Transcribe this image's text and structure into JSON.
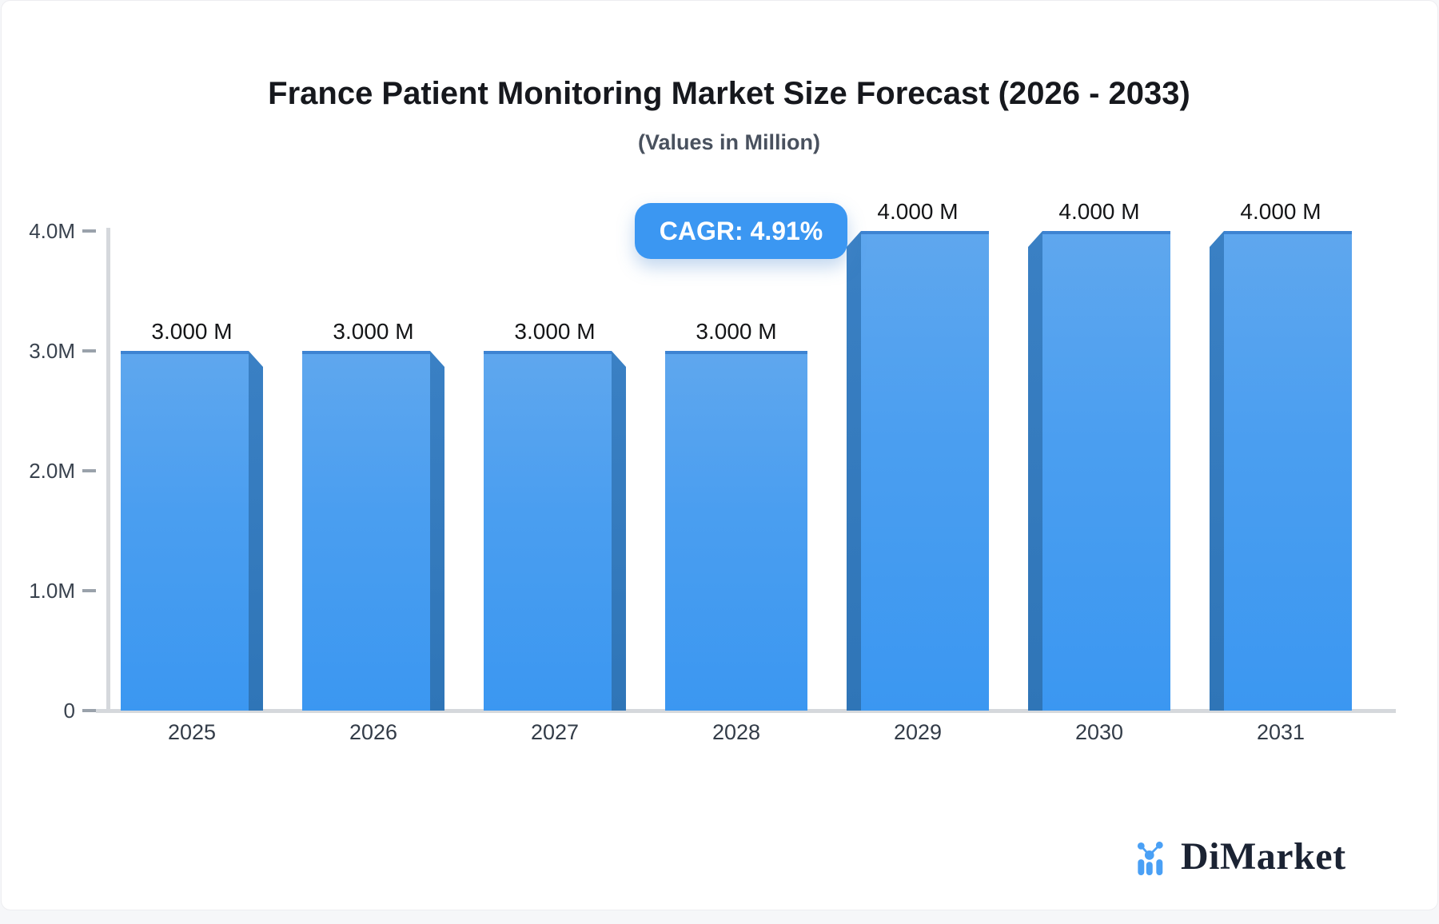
{
  "chart_data": {
    "type": "bar",
    "title": "France Patient Monitoring Market Size Forecast (2026 - 2033)",
    "subtitle": "(Values in Million)",
    "categories": [
      "2025",
      "2026",
      "2027",
      "2028",
      "2029",
      "2030",
      "2031"
    ],
    "values": [
      3.0,
      3.0,
      3.0,
      3.0,
      4.0,
      4.0,
      4.0
    ],
    "value_labels": [
      "3.000 M",
      "3.000 M",
      "3.000 M",
      "3.000 M",
      "4.000 M",
      "4.000 M",
      "4.000 M"
    ],
    "unit": "Million",
    "ylim": [
      0,
      4.0
    ],
    "y_ticks": [
      {
        "label": "4.0M",
        "value": 4.0
      },
      {
        "label": "3.0M",
        "value": 3.0
      },
      {
        "label": "2.0M",
        "value": 2.0
      },
      {
        "label": "1.0M",
        "value": 1.0
      },
      {
        "label": "0",
        "value": 0.0
      }
    ],
    "grid": false,
    "legend_position": "none",
    "badge": "CAGR: 4.91%",
    "colors": {
      "bar_top": "#5fa7ee",
      "bar_bottom": "#3b97f1",
      "bar_top_edge": "#3d83d2",
      "bar_side_face": "#2f75b7",
      "badge_bg": "#3b97f2",
      "axis_line": "#d5d8dc",
      "tick_dash": "#9aa2ab"
    }
  },
  "branding": {
    "logo_text": "DiMarket",
    "logo_icon": "bar-line-chart-icon",
    "logo_text_color": "#1b2333",
    "logo_icon_color": "#4aa0f5"
  }
}
